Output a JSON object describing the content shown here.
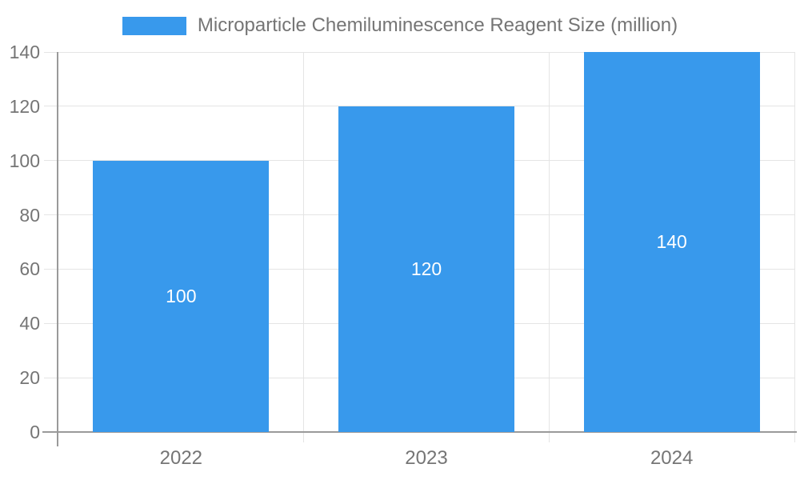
{
  "chart_data": {
    "type": "bar",
    "title": "Microparticle Chemiluminescence Reagent Size (million)",
    "categories": [
      "2022",
      "2023",
      "2024"
    ],
    "values": [
      100,
      120,
      140
    ],
    "data_labels": [
      "100",
      "120",
      "140"
    ],
    "yticks": [
      0,
      20,
      40,
      60,
      80,
      100,
      120,
      140
    ],
    "ylim": [
      0,
      140
    ],
    "xlabel": "",
    "ylabel": "",
    "grid": true,
    "legend": {
      "position": "top-center",
      "entries": [
        {
          "label": "Microparticle Chemiluminescence Reagent Size (million)",
          "color": "#3899ec"
        }
      ]
    },
    "colors": {
      "bar": "#3899ec",
      "data_label": "#ffffff",
      "axis_text": "#757575",
      "grid_line": "#e4e4e4",
      "axis_line": "#9a9a9a",
      "legend_text": "#757575"
    }
  }
}
